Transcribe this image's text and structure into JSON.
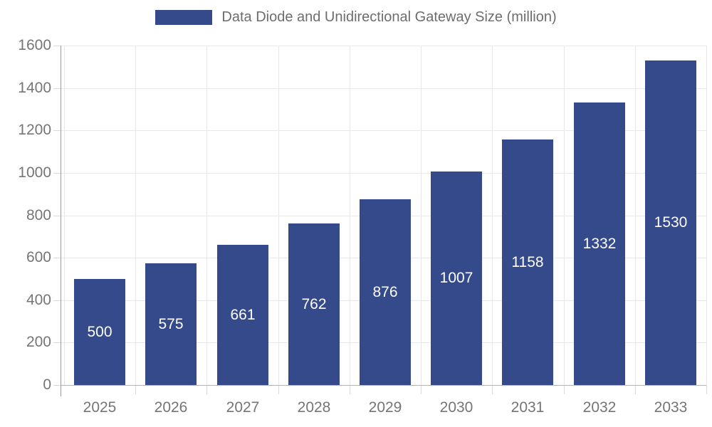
{
  "legend": {
    "label": "Data Diode and Unidirectional Gateway Size (million)"
  },
  "chart_data": {
    "type": "bar",
    "title": "Data Diode and Unidirectional Gateway Size (million)",
    "categories": [
      "2025",
      "2026",
      "2027",
      "2028",
      "2029",
      "2030",
      "2031",
      "2032",
      "2033"
    ],
    "values": [
      500,
      575,
      661,
      762,
      876,
      1007,
      1158,
      1332,
      1530
    ],
    "xlabel": "",
    "ylabel": "",
    "ylim": [
      0,
      1600
    ],
    "yticks": [
      0,
      200,
      400,
      600,
      800,
      1000,
      1200,
      1400,
      1600
    ],
    "grid": true,
    "legend_position": "top-center",
    "bar_label_position": "inside-center"
  },
  "colors": {
    "background": "#ffffff",
    "bar": "#354a8b",
    "bar_label": "#ffffff",
    "grid_line": "#e8e8e8",
    "zero_line": "#b3b3b3",
    "axis_spine": "#999999",
    "tick": "#d9d9d9",
    "tick_label": "#757575",
    "legend_text": "#6d6d6d"
  }
}
